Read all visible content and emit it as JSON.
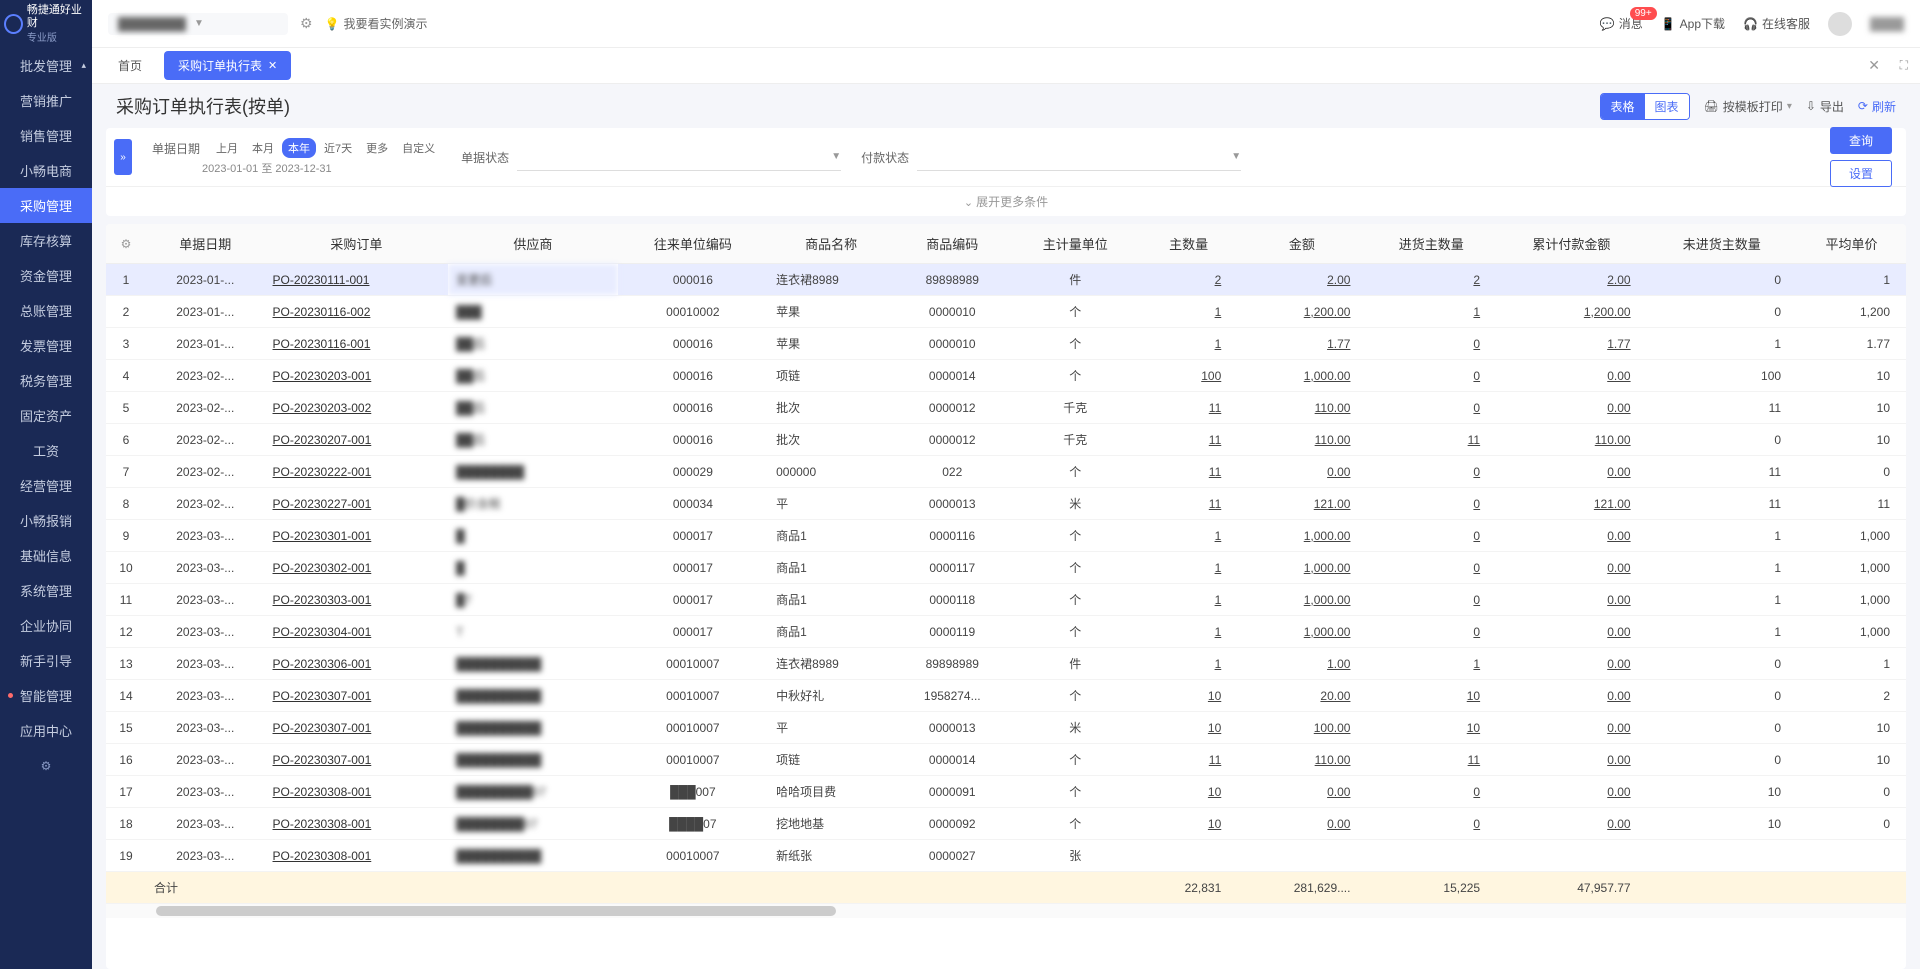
{
  "brand": {
    "name": "畅捷通好业财",
    "edition": "专业版"
  },
  "sidebar": {
    "items": [
      {
        "label": "批发管理",
        "active": false,
        "exp": true
      },
      {
        "label": "营销推广"
      },
      {
        "label": "销售管理"
      },
      {
        "label": "小畅电商"
      },
      {
        "label": "采购管理",
        "active": true
      },
      {
        "label": "库存核算"
      },
      {
        "label": "资金管理"
      },
      {
        "label": "总账管理"
      },
      {
        "label": "发票管理"
      },
      {
        "label": "税务管理"
      },
      {
        "label": "固定资产"
      },
      {
        "label": "工资"
      },
      {
        "label": "经营管理"
      },
      {
        "label": "小畅报销"
      },
      {
        "label": "基础信息"
      },
      {
        "label": "系统管理"
      },
      {
        "label": "企业协同"
      },
      {
        "label": "新手引导"
      },
      {
        "label": "智能管理",
        "dot": true
      },
      {
        "label": "应用中心"
      }
    ]
  },
  "topbar": {
    "org": "████████",
    "demo": "我要看实例演示",
    "msg": "消息",
    "badge": "99+",
    "app": "App下载",
    "cs": "在线客服",
    "user": "████"
  },
  "tabs": {
    "home": "首页",
    "active": "采购订单执行表"
  },
  "page": {
    "title": "采购订单执行表(按单)"
  },
  "toolbar": {
    "view_table": "表格",
    "view_chart": "图表",
    "print": "按模板打印",
    "export": "导出",
    "refresh": "刷新"
  },
  "filter": {
    "date_label": "单据日期",
    "d1": "上月",
    "d2": "本月",
    "d3": "本年",
    "d4": "近7天",
    "d5": "更多",
    "d6": "自定义",
    "range": "2023-01-01 至 2023-12-31",
    "status_label": "单据状态",
    "pay_label": "付款状态",
    "query": "查询",
    "settings": "设置",
    "expand": "展开更多条件"
  },
  "columns": {
    "c0": "",
    "c1": "单据日期",
    "c2": "采购订单",
    "c3": "供应商",
    "c4": "往来单位编码",
    "c5": "商品名称",
    "c6": "商品编码",
    "c7": "主计量单位",
    "c8": "主数量",
    "c9": "金额",
    "c10": "进货主数量",
    "c11": "累计付款金额",
    "c12": "未进货主数量",
    "c13": "平均单价"
  },
  "rows": [
    {
      "n": "1",
      "date": "2023-01-...",
      "po": "PO-20230111-001",
      "sup": "变更后",
      "code": "000016",
      "pname": "连衣裙8989",
      "pcode": "89898989",
      "unit": "件",
      "qty": "2",
      "amt": "2.00",
      "inqty": "2",
      "paid": "2.00",
      "left": "0",
      "avg": "1"
    },
    {
      "n": "2",
      "date": "2023-01-...",
      "po": "PO-20230116-002",
      "sup": "███",
      "code": "00010002",
      "pname": "苹果",
      "pcode": "0000010",
      "unit": "个",
      "qty": "1",
      "amt": "1,200.00",
      "inqty": "1",
      "paid": "1,200.00",
      "left": "0",
      "avg": "1,200"
    },
    {
      "n": "3",
      "date": "2023-01-...",
      "po": "PO-20230116-001",
      "sup": "██后",
      "code": "000016",
      "pname": "苹果",
      "pcode": "0000010",
      "unit": "个",
      "qty": "1",
      "amt": "1.77",
      "inqty": "0",
      "paid": "1.77",
      "left": "1",
      "avg": "1.77"
    },
    {
      "n": "4",
      "date": "2023-02-...",
      "po": "PO-20230203-001",
      "sup": "██后",
      "code": "000016",
      "pname": "项链",
      "pcode": "0000014",
      "unit": "个",
      "qty": "100",
      "amt": "1,000.00",
      "inqty": "0",
      "paid": "0.00",
      "left": "100",
      "avg": "10"
    },
    {
      "n": "5",
      "date": "2023-02-...",
      "po": "PO-20230203-002",
      "sup": "██后",
      "code": "000016",
      "pname": "批次",
      "pcode": "0000012",
      "unit": "千克",
      "qty": "11",
      "amt": "110.00",
      "inqty": "0",
      "paid": "0.00",
      "left": "11",
      "avg": "10"
    },
    {
      "n": "6",
      "date": "2023-02-...",
      "po": "PO-20230207-001",
      "sup": "██后",
      "code": "000016",
      "pname": "批次",
      "pcode": "0000012",
      "unit": "千克",
      "qty": "11",
      "amt": "110.00",
      "inqty": "11",
      "paid": "110.00",
      "left": "0",
      "avg": "10"
    },
    {
      "n": "7",
      "date": "2023-02-...",
      "po": "PO-20230222-001",
      "sup": "████████",
      "code": "000029",
      "pname": "000000",
      "pcode": "022",
      "unit": "个",
      "qty": "11",
      "amt": "0.00",
      "inqty": "0",
      "paid": "0.00",
      "left": "11",
      "avg": "0"
    },
    {
      "n": "8",
      "date": "2023-02-...",
      "po": "PO-20230227-001",
      "sup": "█价含税",
      "code": "000034",
      "pname": "平",
      "pcode": "0000013",
      "unit": "米",
      "qty": "11",
      "amt": "121.00",
      "inqty": "0",
      "paid": "121.00",
      "left": "11",
      "avg": "11"
    },
    {
      "n": "9",
      "date": "2023-03-...",
      "po": "PO-20230301-001",
      "sup": "█",
      "code": "000017",
      "pname": "商品1",
      "pcode": "0000116",
      "unit": "个",
      "qty": "1",
      "amt": "1,000.00",
      "inqty": "0",
      "paid": "0.00",
      "left": "1",
      "avg": "1,000"
    },
    {
      "n": "10",
      "date": "2023-03-...",
      "po": "PO-20230302-001",
      "sup": "█",
      "code": "000017",
      "pname": "商品1",
      "pcode": "0000117",
      "unit": "个",
      "qty": "1",
      "amt": "1,000.00",
      "inqty": "0",
      "paid": "0.00",
      "left": "1",
      "avg": "1,000"
    },
    {
      "n": "11",
      "date": "2023-03-...",
      "po": "PO-20230303-001",
      "sup": "█T",
      "code": "000017",
      "pname": "商品1",
      "pcode": "0000118",
      "unit": "个",
      "qty": "1",
      "amt": "1,000.00",
      "inqty": "0",
      "paid": "0.00",
      "left": "1",
      "avg": "1,000"
    },
    {
      "n": "12",
      "date": "2023-03-...",
      "po": "PO-20230304-001",
      "sup": "T",
      "code": "000017",
      "pname": "商品1",
      "pcode": "0000119",
      "unit": "个",
      "qty": "1",
      "amt": "1,000.00",
      "inqty": "0",
      "paid": "0.00",
      "left": "1",
      "avg": "1,000"
    },
    {
      "n": "13",
      "date": "2023-03-...",
      "po": "PO-20230306-001",
      "sup": "██████████",
      "code": "00010007",
      "pname": "连衣裙8989",
      "pcode": "89898989",
      "unit": "件",
      "qty": "1",
      "amt": "1.00",
      "inqty": "1",
      "paid": "0.00",
      "left": "0",
      "avg": "1"
    },
    {
      "n": "14",
      "date": "2023-03-...",
      "po": "PO-20230307-001",
      "sup": "██████████",
      "code": "00010007",
      "pname": "中秋好礼",
      "pcode": "1958274...",
      "unit": "个",
      "qty": "10",
      "amt": "20.00",
      "inqty": "10",
      "paid": "0.00",
      "left": "0",
      "avg": "2"
    },
    {
      "n": "15",
      "date": "2023-03-...",
      "po": "PO-20230307-001",
      "sup": "██████████",
      "code": "00010007",
      "pname": "平",
      "pcode": "0000013",
      "unit": "米",
      "qty": "10",
      "amt": "100.00",
      "inqty": "10",
      "paid": "0.00",
      "left": "0",
      "avg": "10"
    },
    {
      "n": "16",
      "date": "2023-03-...",
      "po": "PO-20230307-001",
      "sup": "██████████",
      "code": "00010007",
      "pname": "项链",
      "pcode": "0000014",
      "unit": "个",
      "qty": "11",
      "amt": "110.00",
      "inqty": "11",
      "paid": "0.00",
      "left": "0",
      "avg": "10"
    },
    {
      "n": "17",
      "date": "2023-03-...",
      "po": "PO-20230308-001",
      "sup": "█████████07",
      "code": "███007",
      "pname": "哈哈项目费",
      "pcode": "0000091",
      "unit": "个",
      "qty": "10",
      "amt": "0.00",
      "inqty": "0",
      "paid": "0.00",
      "left": "10",
      "avg": "0"
    },
    {
      "n": "18",
      "date": "2023-03-...",
      "po": "PO-20230308-001",
      "sup": "████████07",
      "code": "████07",
      "pname": "挖地地基",
      "pcode": "0000092",
      "unit": "个",
      "qty": "10",
      "amt": "0.00",
      "inqty": "0",
      "paid": "0.00",
      "left": "10",
      "avg": "0"
    },
    {
      "n": "19",
      "date": "2023-03-...",
      "po": "PO-20230308-001",
      "sup": "██████████",
      "code": "00010007",
      "pname": "新纸张",
      "pcode": "0000027",
      "unit": "张",
      "qty": "",
      "amt": "",
      "inqty": "",
      "paid": "",
      "left": "",
      "avg": ""
    }
  ],
  "sum": {
    "label": "合计",
    "qty": "22,831",
    "amt": "281,629....",
    "inqty": "15,225",
    "paid": "47,957.77"
  }
}
